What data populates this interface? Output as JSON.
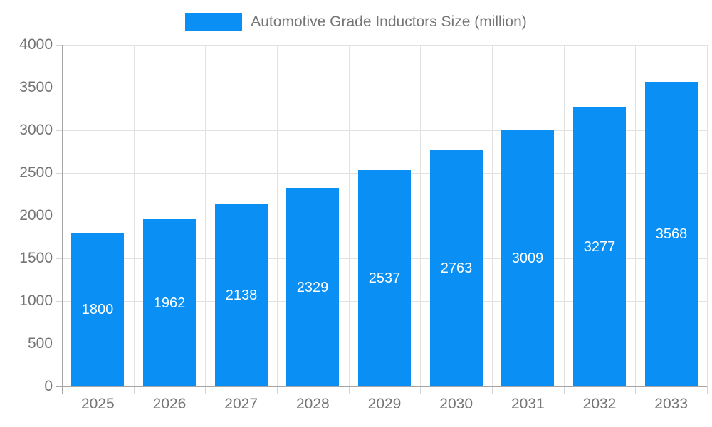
{
  "legend": {
    "items": [
      {
        "label": "Automotive Grade Inductors Size (million)"
      }
    ]
  },
  "chart_data": {
    "type": "bar",
    "title": "Automotive Grade Inductors Size (million)",
    "categories": [
      "2025",
      "2026",
      "2027",
      "2028",
      "2029",
      "2030",
      "2031",
      "2032",
      "2033"
    ],
    "values": [
      1800,
      1962,
      2138,
      2329,
      2537,
      2763,
      3009,
      3277,
      3568
    ],
    "xlabel": "",
    "ylabel": "",
    "ylim": [
      0,
      4000
    ],
    "ytick_step": 500,
    "grid": true,
    "legend_position": "top",
    "bar_color": "#0a8ff4",
    "value_label_color": "#ffffff",
    "axis_text_color": "#757575",
    "gridline_color": "#e2e2e2",
    "axis_line_color": "#a5a5a5",
    "tick_color": "#d4d4d4",
    "background": "#ffffff"
  }
}
